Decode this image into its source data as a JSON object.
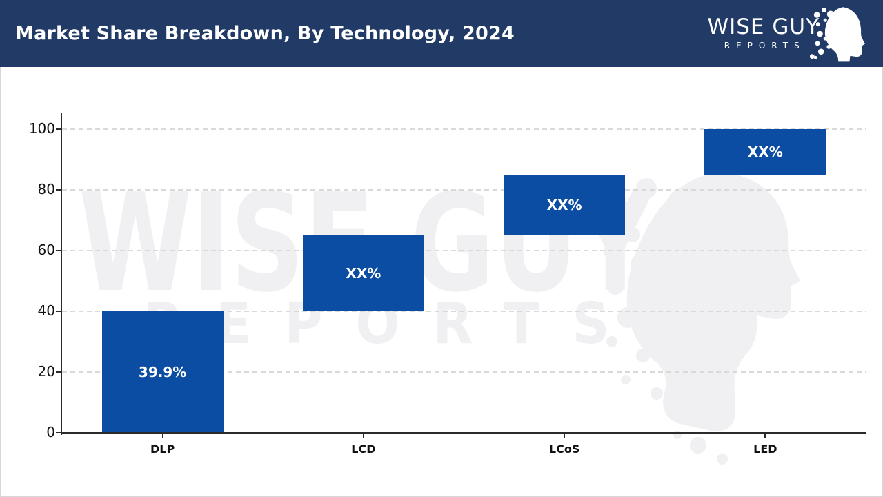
{
  "header": {
    "title": "Market Share Breakdown, By Technology, 2024",
    "logo": {
      "name": "WISE GUY",
      "sub": "REPORTS"
    }
  },
  "watermark": {
    "line1": "WISE GUY",
    "line2": "REPORTS"
  },
  "colors": {
    "header_bg": "#213a66",
    "bar": "#0b4da2",
    "bar_label": "#ffffff",
    "grid": "#d9d9d9",
    "axis": "#2b2b2b",
    "tick_label": "#111111",
    "watermark": "#f0f0f3",
    "page_border": "#d7d7d7"
  },
  "chart_data": {
    "type": "bar",
    "subtype": "waterfall",
    "title": "Market Share Breakdown, By Technology, 2024",
    "categories": [
      "DLP",
      "LCD",
      "LCoS",
      "LED"
    ],
    "segments": [
      {
        "category": "DLP",
        "start": 0,
        "end": 39.9,
        "label": "39.9%"
      },
      {
        "category": "LCD",
        "start": 39.9,
        "end": 64.9,
        "label": "XX%"
      },
      {
        "category": "LCoS",
        "start": 64.9,
        "end": 84.9,
        "label": "XX%"
      },
      {
        "category": "LED",
        "start": 84.9,
        "end": 100,
        "label": "XX%"
      }
    ],
    "yticks": [
      0,
      20,
      40,
      60,
      80,
      100
    ],
    "ylim": [
      0,
      105.5
    ],
    "xlabel": "",
    "ylabel": "",
    "grid": "horizontal-dashed",
    "legend": "none"
  }
}
